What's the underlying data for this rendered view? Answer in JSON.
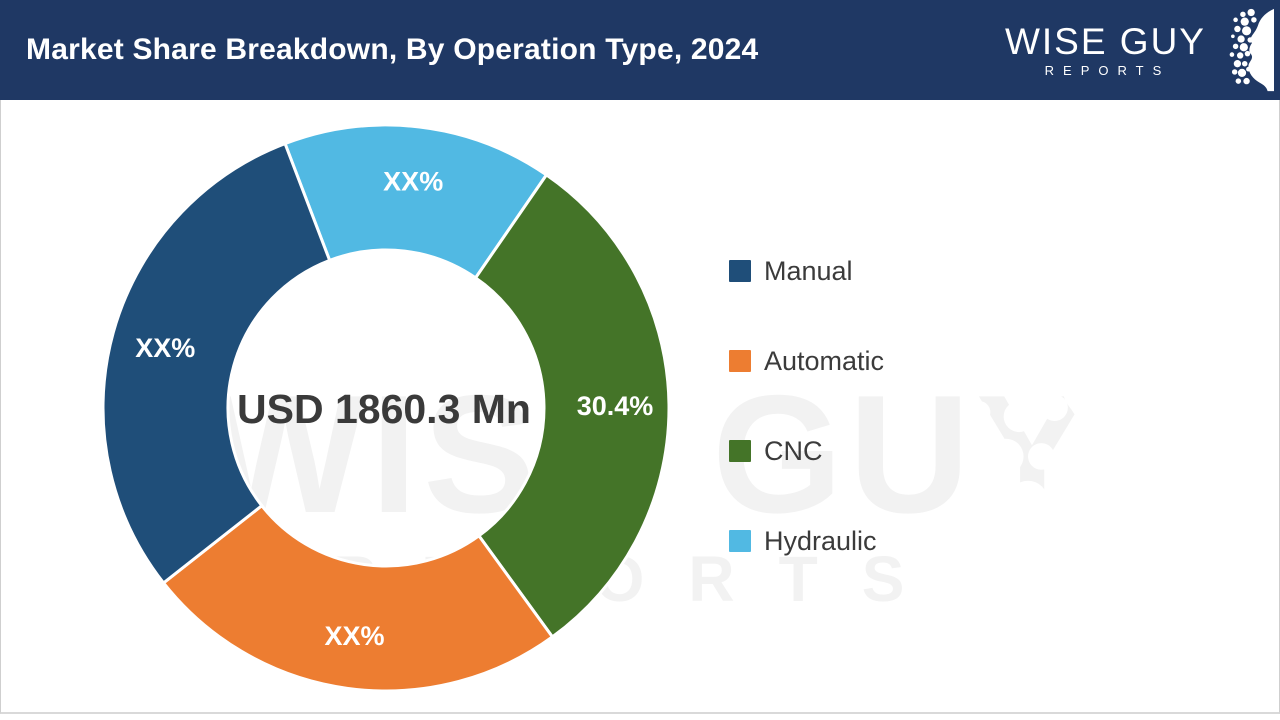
{
  "header": {
    "title": "Market Share Breakdown, By Operation Type, 2024",
    "logo": {
      "line1": "WISE GUY",
      "line2": "REPORTS"
    }
  },
  "chart_data": {
    "type": "pie",
    "subtype": "donut",
    "title": "Market Share Breakdown, By Operation Type, 2024",
    "center_label": "USD 1860.3 Mn",
    "start_angle_deg": -20.9,
    "direction": "clockwise",
    "legend_position": "right",
    "segments": [
      {
        "name": "Hydraulic",
        "display_label": "XX%",
        "value_pct": 15.4,
        "color": "#51b9e3"
      },
      {
        "name": "CNC",
        "display_label": "30.4%",
        "value_pct": 30.4,
        "color": "#447428"
      },
      {
        "name": "Automatic",
        "display_label": "XX%",
        "value_pct": 24.4,
        "color": "#ed7d31"
      },
      {
        "name": "Manual",
        "display_label": "XX%",
        "value_pct": 29.8,
        "color": "#1f4e79"
      }
    ]
  },
  "legend": {
    "items": [
      {
        "label": "Manual",
        "color": "#1f4e79"
      },
      {
        "label": "Automatic",
        "color": "#ed7d31"
      },
      {
        "label": "CNC",
        "color": "#447428"
      },
      {
        "label": "Hydraulic",
        "color": "#51b9e3"
      }
    ]
  },
  "watermark": {
    "line1": "WISE GUY",
    "line2": "REPORTS"
  },
  "colors": {
    "header_bg": "#1f3864",
    "center_text": "#3a3a3a",
    "legend_text": "#3b3b3b",
    "watermark": "#f2f2f2"
  }
}
